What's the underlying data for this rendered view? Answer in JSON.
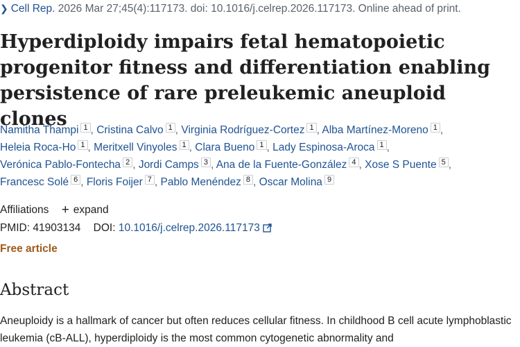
{
  "citation": {
    "journal": "Cell Rep.",
    "details": "2026 Mar 27;45(4):117173. doi: 10.1016/j.celrep.2026.117173. Online ahead of print."
  },
  "title": "Hyperdiploidy impairs fetal hematopoietic progenitor fitness and differentiation enabling persistence of rare preleukemic aneuploid clones",
  "authors": [
    {
      "name": "Namitha Thampi",
      "aff": "1"
    },
    {
      "name": "Cristina Calvo",
      "aff": "1"
    },
    {
      "name": "Virginia Rodríguez-Cortez",
      "aff": "1"
    },
    {
      "name": "Alba Martínez-Moreno",
      "aff": "1"
    },
    {
      "name": "Heleia Roca-Ho",
      "aff": "1"
    },
    {
      "name": "Meritxell Vinyoles",
      "aff": "1"
    },
    {
      "name": "Clara Bueno",
      "aff": "1"
    },
    {
      "name": "Lady Espinosa-Aroca",
      "aff": "1"
    },
    {
      "name": "Verónica Pablo-Fontecha",
      "aff": "2"
    },
    {
      "name": "Jordi Camps",
      "aff": "3"
    },
    {
      "name": "Ana de la Fuente-González",
      "aff": "4"
    },
    {
      "name": "Xose S Puente",
      "aff": "5"
    },
    {
      "name": "Francesc Solé",
      "aff": "6"
    },
    {
      "name": "Floris Foijer",
      "aff": "7"
    },
    {
      "name": "Pablo Menéndez",
      "aff": "8"
    },
    {
      "name": "Oscar Molina",
      "aff": "9"
    }
  ],
  "affiliations": {
    "label": "Affiliations",
    "expand_label": "expand"
  },
  "ids": {
    "pmid_label": "PMID:",
    "pmid": "41903134",
    "doi_label": "DOI:",
    "doi": "10.1016/j.celrep.2026.117173"
  },
  "free_article": "Free article",
  "abstract": {
    "heading": "Abstract",
    "text": "Aneuploidy is a hallmark of cancer but often reduces cellular fitness. In childhood B cell acute lymphoblastic leukemia (cB-ALL), hyperdiploidy is the most common cytogenetic abnormality and"
  },
  "icons": {
    "chevron": "chevron-right-icon",
    "plus": "plus-icon",
    "external": "external-link-icon"
  },
  "colors": {
    "link": "#205493",
    "free": "#9c5b1b"
  }
}
